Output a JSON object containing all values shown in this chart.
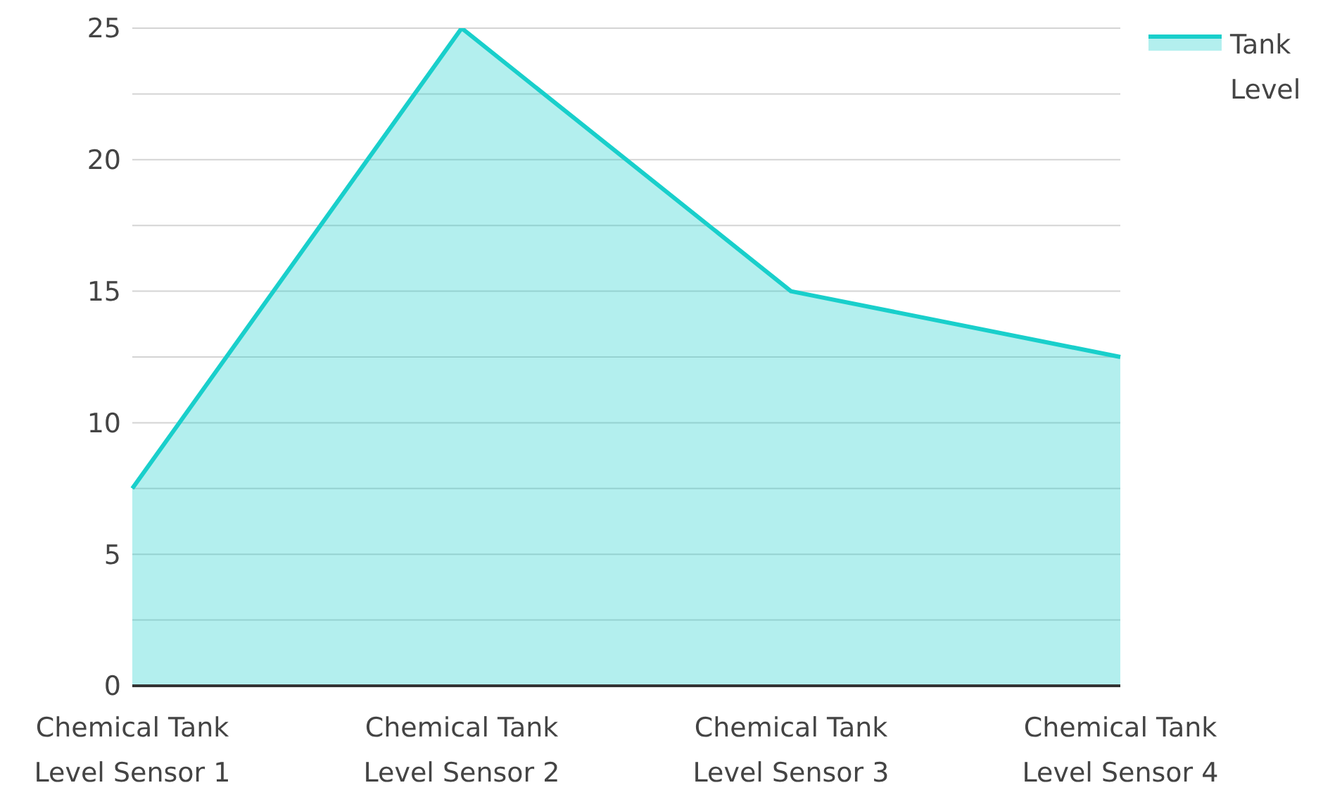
{
  "chart_data": {
    "type": "area",
    "categories": [
      "Chemical Tank Level Sensor 1",
      "Chemical Tank Level Sensor 2",
      "Chemical Tank Level Sensor 3",
      "Chemical Tank Level Sensor 4"
    ],
    "series": [
      {
        "name": "Tank Level",
        "color": "#19cfcb",
        "values": [
          7.5,
          25,
          15,
          12.5
        ]
      }
    ],
    "ylim": [
      0,
      25
    ],
    "yticks": [
      0,
      {
        "value": 2.5,
        "label": null
      },
      5,
      {
        "value": 7.5,
        "label": null
      },
      10,
      {
        "value": 12.5,
        "label": null
      },
      15,
      {
        "value": 17.5,
        "label": null
      },
      20,
      {
        "value": 22.5,
        "label": null
      },
      25
    ],
    "grid": "y",
    "legend": "top right"
  }
}
